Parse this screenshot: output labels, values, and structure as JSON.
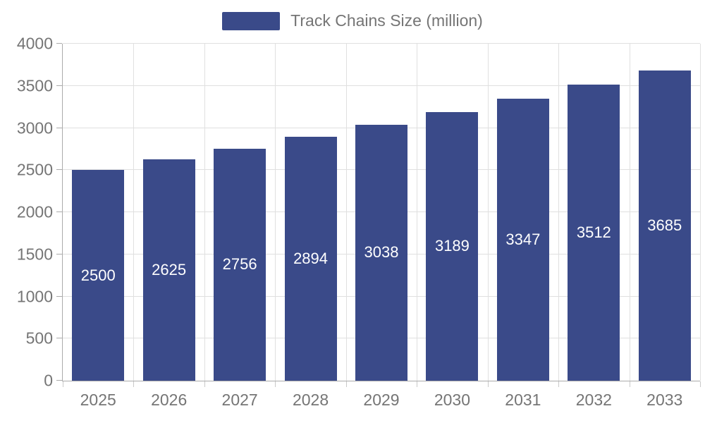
{
  "chart_data": {
    "type": "bar",
    "title": "Track Chains Size (million)",
    "legend": [
      "Track Chains Size (million)"
    ],
    "legend_position": "top",
    "categories": [
      "2025",
      "2026",
      "2027",
      "2028",
      "2029",
      "2030",
      "2031",
      "2032",
      "2033"
    ],
    "values": [
      2500,
      2625,
      2756,
      2894,
      3038,
      3189,
      3347,
      3512,
      3685
    ],
    "xlabel": "",
    "ylabel": "",
    "ylim": [
      0,
      4000
    ],
    "yticks": [
      0,
      500,
      1000,
      1500,
      2000,
      2500,
      3000,
      3500,
      4000
    ],
    "grid": true,
    "bar_labels_inside": true,
    "colors": {
      "bar": "#3a4a89",
      "grid": "#e0e0e0",
      "axis": "#ababab",
      "text": "#757575",
      "bar_label": "#ffffff",
      "background": "#ffffff"
    }
  }
}
